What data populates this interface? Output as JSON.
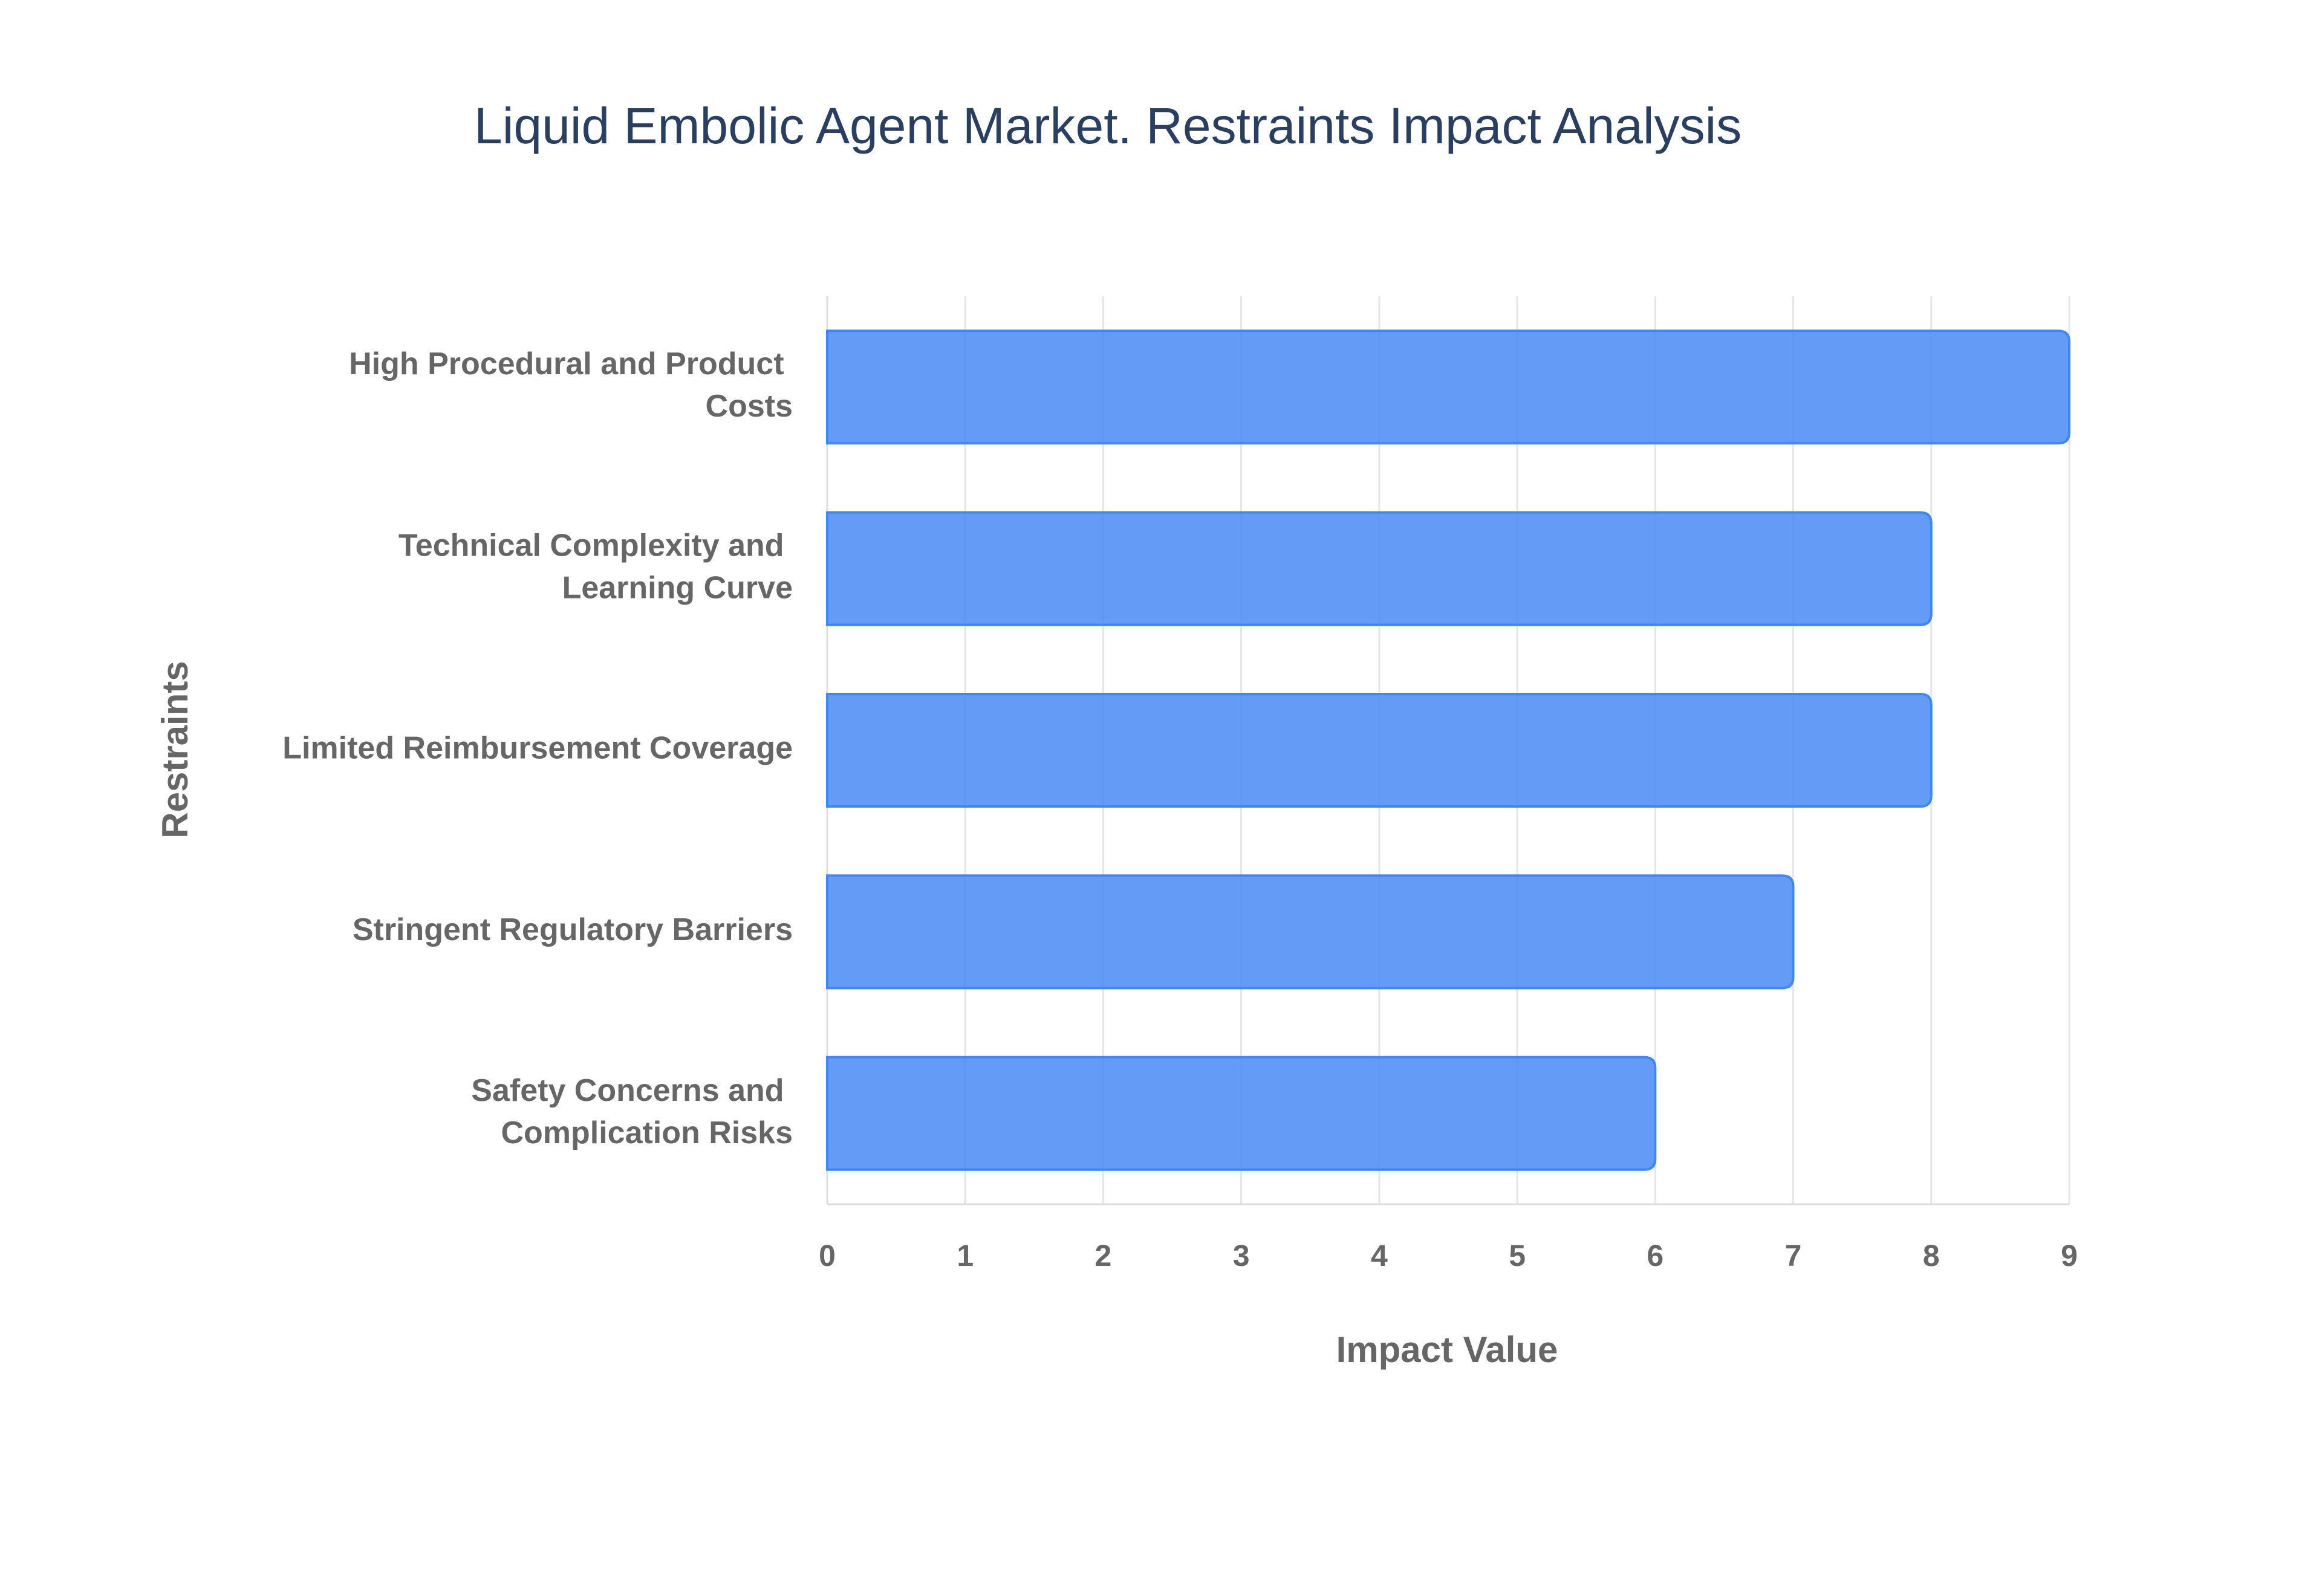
{
  "chart_data": {
    "type": "bar",
    "orientation": "horizontal",
    "title": "Liquid Embolic Agent Market. Restraints Impact Analysis",
    "x_label": "Impact Value",
    "y_label": "Restraints",
    "categories": [
      "High Procedural and Product Costs",
      "Technical Complexity and Learning Curve",
      "Limited Reimbursement Coverage",
      "Stringent Regulatory Barriers",
      "Safety Concerns and Complication Risks"
    ],
    "values": [
      9,
      8,
      8,
      7,
      6
    ],
    "color": "#4285f4",
    "xlim": [
      0,
      9
    ],
    "xticks": [
      0,
      1,
      2,
      3,
      4,
      5,
      6,
      7,
      8,
      9
    ],
    "grid": true
  }
}
